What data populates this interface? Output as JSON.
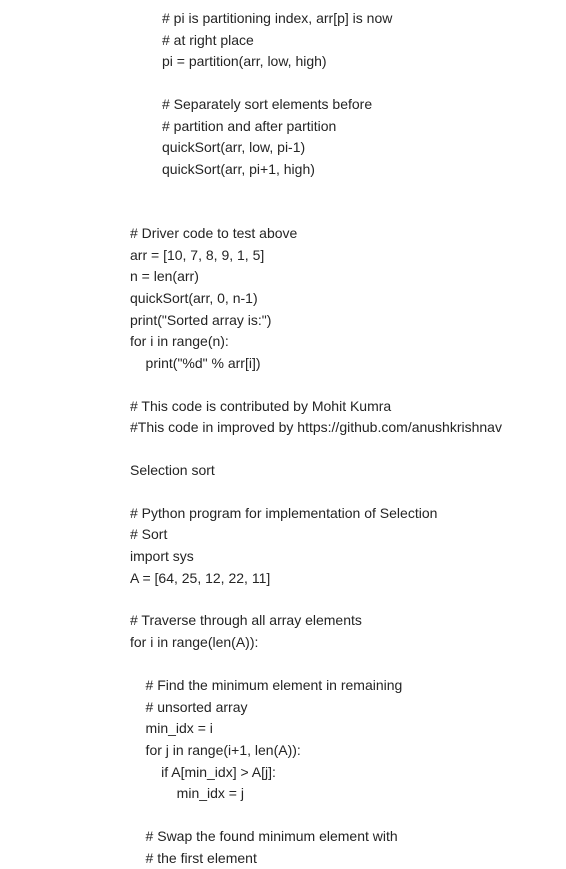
{
  "lines": [
    {
      "text": "# pi is partitioning index, arr[p] is now",
      "indent": 1
    },
    {
      "text": "# at right place",
      "indent": 1
    },
    {
      "text": "pi = partition(arr, low, high)",
      "indent": 1
    },
    {
      "text": "",
      "indent": 0,
      "blank": true
    },
    {
      "text": "# Separately sort elements before",
      "indent": 1
    },
    {
      "text": "# partition and after partition",
      "indent": 1
    },
    {
      "text": "quickSort(arr, low, pi-1)",
      "indent": 1
    },
    {
      "text": "quickSort(arr, pi+1, high)",
      "indent": 1
    },
    {
      "text": "",
      "indent": 0,
      "blank": true
    },
    {
      "text": "",
      "indent": 0,
      "blank": true
    },
    {
      "text": "# Driver code to test above",
      "indent": 0
    },
    {
      "text": "arr = [10, 7, 8, 9, 1, 5]",
      "indent": 0
    },
    {
      "text": "n = len(arr)",
      "indent": 0
    },
    {
      "text": "quickSort(arr, 0, n-1)",
      "indent": 0
    },
    {
      "text": "print(\"Sorted array is:\")",
      "indent": 0
    },
    {
      "text": "for i in range(n):",
      "indent": 0
    },
    {
      "text": "    print(\"%d\" % arr[i])",
      "indent": 0
    },
    {
      "text": "",
      "indent": 0,
      "blank": true
    },
    {
      "text": "# This code is contributed by Mohit Kumra",
      "indent": 0
    },
    {
      "text": "#This code in improved by https://github.com/anushkrishnav",
      "indent": 0
    },
    {
      "text": "",
      "indent": 0,
      "blank": true
    },
    {
      "text": "Selection sort",
      "indent": 0
    },
    {
      "text": "",
      "indent": 0,
      "blank": true
    },
    {
      "text": "# Python program for implementation of Selection",
      "indent": 0
    },
    {
      "text": "# Sort",
      "indent": 0
    },
    {
      "text": "import sys",
      "indent": 0
    },
    {
      "text": "A = [64, 25, 12, 22, 11]",
      "indent": 0
    },
    {
      "text": "",
      "indent": 0,
      "blank": true
    },
    {
      "text": "# Traverse through all array elements",
      "indent": 0
    },
    {
      "text": "for i in range(len(A)):",
      "indent": 0
    },
    {
      "text": "",
      "indent": 0,
      "blank": true
    },
    {
      "text": "    # Find the minimum element in remaining",
      "indent": 0
    },
    {
      "text": "    # unsorted array",
      "indent": 0
    },
    {
      "text": "    min_idx = i",
      "indent": 0
    },
    {
      "text": "    for j in range(i+1, len(A)):",
      "indent": 0
    },
    {
      "text": "        if A[min_idx] > A[j]:",
      "indent": 0
    },
    {
      "text": "            min_idx = j",
      "indent": 0
    },
    {
      "text": "",
      "indent": 0,
      "blank": true
    },
    {
      "text": "    # Swap the found minimum element with",
      "indent": 0
    },
    {
      "text": "    # the first element",
      "indent": 0
    }
  ],
  "styles": {
    "text_color": "#242424",
    "background_color": "#ffffff",
    "font_size": 14,
    "line_height": 1.55,
    "indent_width": 32
  }
}
